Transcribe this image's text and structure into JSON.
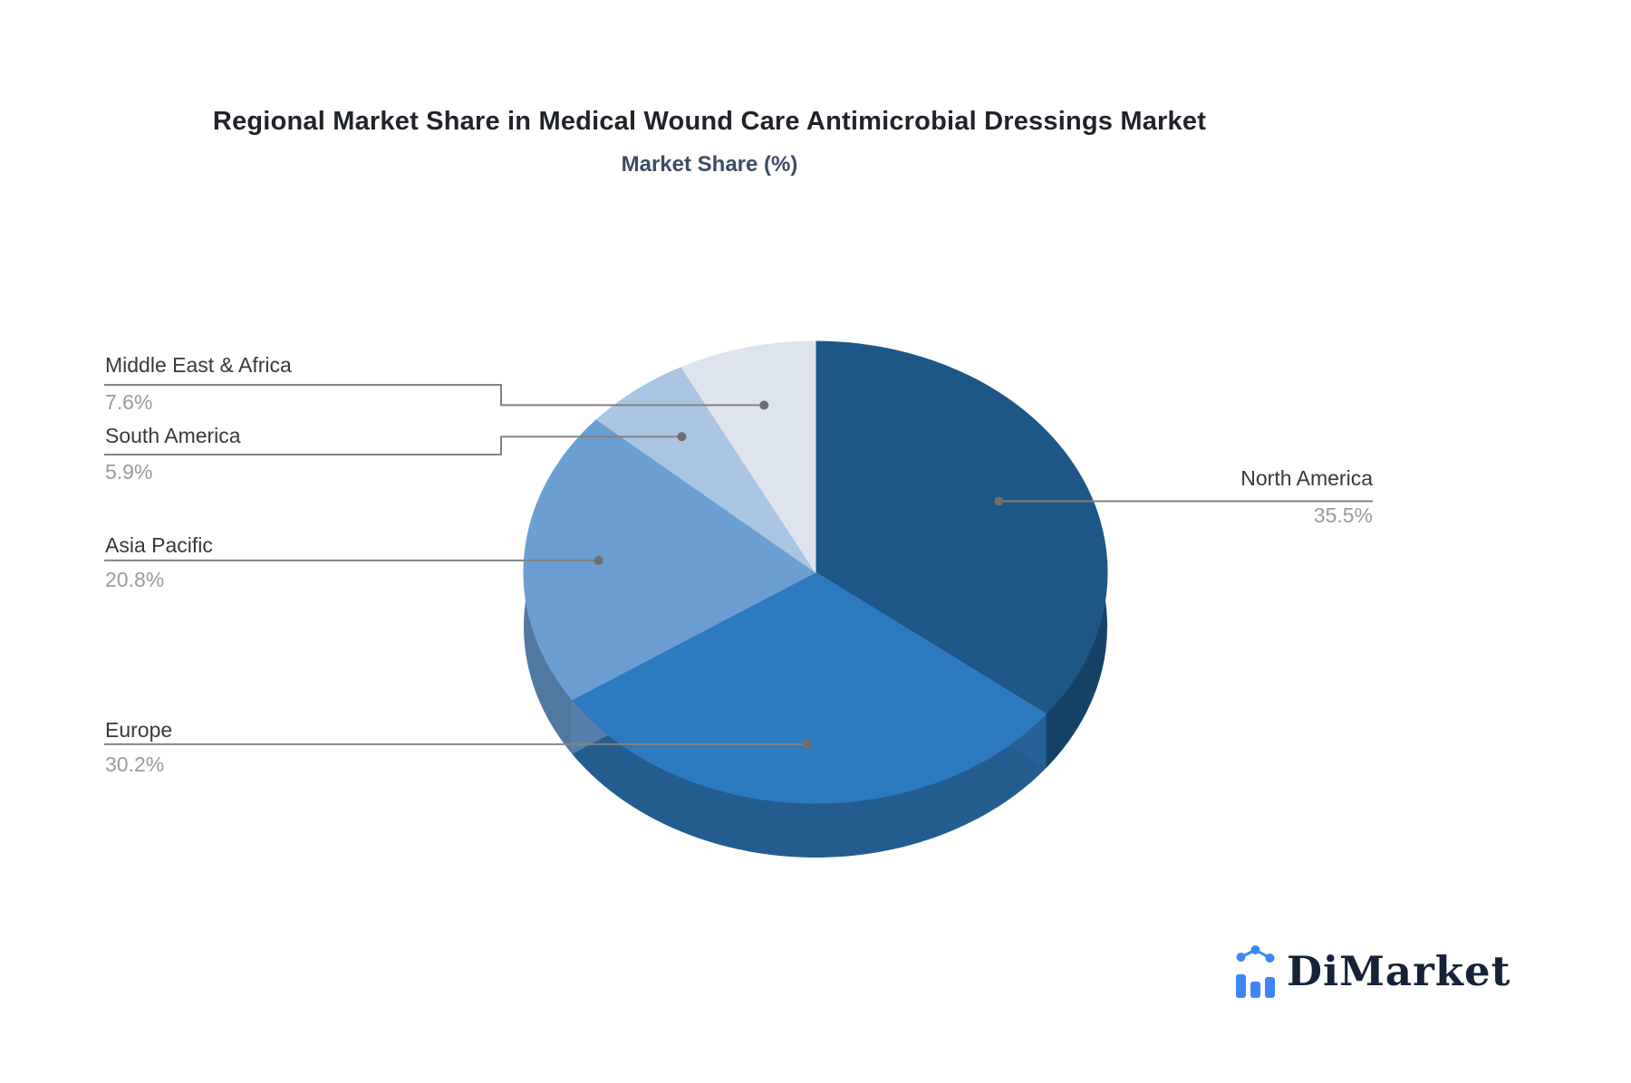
{
  "title": "Regional Market Share in Medical Wound Care Antimicrobial Dressings Market",
  "subtitle": "Market Share (%)",
  "logo": {
    "text": "DiMarket"
  },
  "colors": {
    "title": "#20242a",
    "subtitle": "#3d4c63",
    "label": "#37393c",
    "pct": "#9b9b9b",
    "line": "#828282",
    "dot": "#6e6e6e",
    "logo_blue": "#3e86f5",
    "logo_text": "#152238",
    "background": "#ffffff"
  },
  "chart_data": {
    "type": "pie",
    "title": "Regional Market Share in Medical Wound Care Antimicrobial Dressings Market",
    "value_label": "Market Share (%)",
    "unit": "%",
    "style": "3d-pie",
    "start_angle_deg": 0,
    "direction": "clockwise",
    "legend_position": "callout-labels",
    "slices": [
      {
        "label": "North America",
        "value": 35.5,
        "display": "35.5%",
        "color": "#1d5787",
        "callout_side": "right"
      },
      {
        "label": "Europe",
        "value": 30.2,
        "display": "30.2%",
        "color": "#2e7abe",
        "callout_side": "left"
      },
      {
        "label": "Asia Pacific",
        "value": 20.8,
        "display": "20.8%",
        "color": "#6b9ed3",
        "callout_side": "left"
      },
      {
        "label": "South America",
        "value": 5.9,
        "display": "5.9%",
        "color": "#a9c5e1",
        "callout_side": "left"
      },
      {
        "label": "Middle East & Africa",
        "value": 7.6,
        "display": "7.6%",
        "color": "#dde4ed",
        "callout_side": "left"
      }
    ]
  }
}
